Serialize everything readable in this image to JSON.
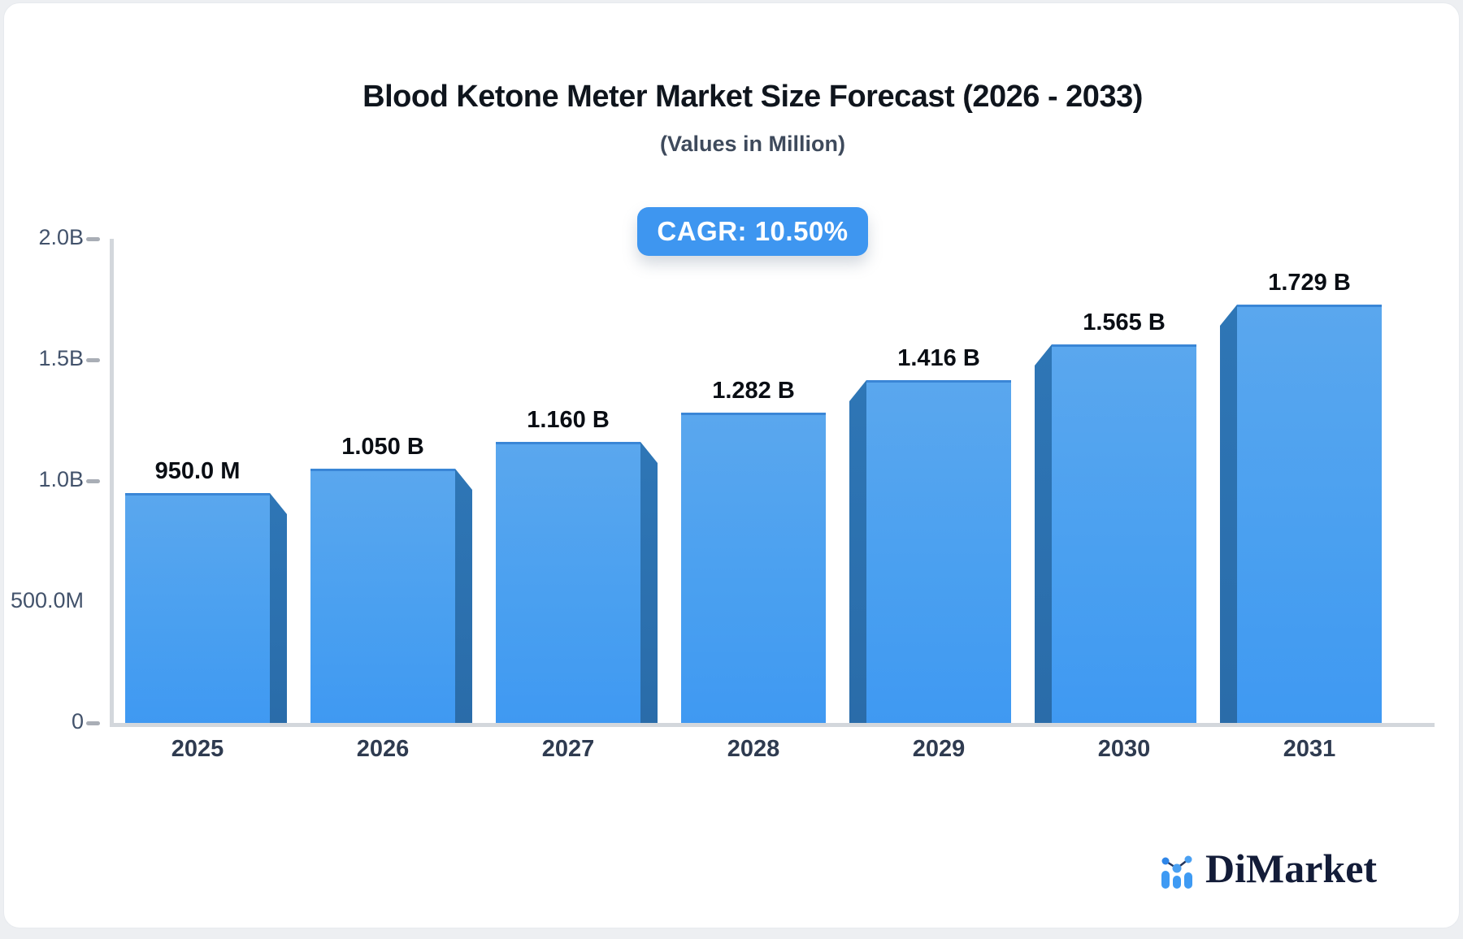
{
  "title": "Blood Ketone Meter Market Size Forecast (2026 - 2033)",
  "subtitle": "(Values in Million)",
  "cagr_badge": "CAGR: 10.50%",
  "chart_data": {
    "type": "bar",
    "title": "Blood Ketone Meter Market Size Forecast (2026 - 2033)",
    "subtitle": "(Values in Million)",
    "cagr": "10.50%",
    "categories": [
      "2025",
      "2026",
      "2027",
      "2028",
      "2029",
      "2030",
      "2031"
    ],
    "values_billions": [
      0.95,
      1.05,
      1.16,
      1.282,
      1.416,
      1.565,
      1.729
    ],
    "value_labels": [
      "950.0 M",
      "1.050 B",
      "1.160 B",
      "1.282 B",
      "1.416 B",
      "1.565 B",
      "1.729 B"
    ],
    "ylim_billions": [
      0,
      2.0
    ],
    "y_ticks": [
      {
        "label": "2.0B",
        "value": 2.0,
        "dash": true
      },
      {
        "label": "1.5B",
        "value": 1.5,
        "dash": true
      },
      {
        "label": "1.0B",
        "value": 1.0,
        "dash": true
      },
      {
        "label": "500.0M",
        "value": 0.5,
        "dash": false
      },
      {
        "label": "0",
        "value": 0.0,
        "dash": true
      }
    ],
    "grid": "off",
    "legend": "none"
  },
  "logo": {
    "text": "DiMarket"
  },
  "colors": {
    "bar_top": "#5aa7ee",
    "bar_bottom": "#3f99f2",
    "bar_side": "#2d73b3",
    "badge_bg": "#3e96f0",
    "axis_gray": "#d3d7dc",
    "tick_dash": "#a9aeb6",
    "logo_blue": "#3e9af3",
    "logo_navy": "#131c38"
  }
}
